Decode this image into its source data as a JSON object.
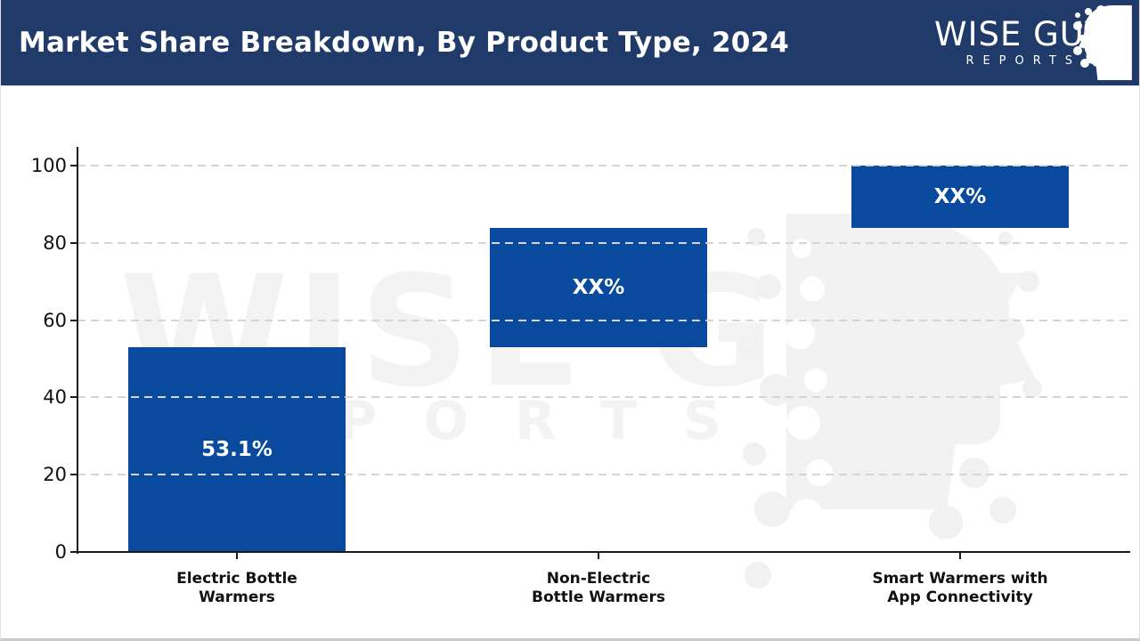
{
  "header": {
    "title": "Market Share Breakdown, By Product Type, 2024",
    "logo": {
      "name": "WISE GUY",
      "subtitle": "REPORTS"
    }
  },
  "watermark": {
    "line1": "WISE GUY",
    "line2": "REPORTS"
  },
  "chart_data": {
    "type": "bar",
    "variant": "waterfall",
    "title": "Market Share Breakdown, By Product Type, 2024",
    "categories": [
      "Electric Bottle Warmers",
      "Non-Electric Bottle Warmers",
      "Smart Warmers with App Connectivity"
    ],
    "tick_labels": [
      "Electric Bottle\nWarmers",
      "Non-Electric\nBottle Warmers",
      "Smart Warmers with\nApp Connectivity"
    ],
    "segments": [
      {
        "category": "Electric Bottle Warmers",
        "start": 0,
        "end": 53.1,
        "label": "53.1%"
      },
      {
        "category": "Non-Electric Bottle Warmers",
        "start": 53.1,
        "end": 83.9,
        "label": "XX%"
      },
      {
        "category": "Smart Warmers with App Connectivity",
        "start": 83.9,
        "end": 100,
        "label": "XX%"
      }
    ],
    "xlabel": "",
    "ylabel": "",
    "ylim": [
      0,
      100
    ],
    "yticks": [
      0,
      20,
      40,
      60,
      80,
      100
    ],
    "grid": "horizontal-dashed",
    "legend": "none",
    "bar_color": "#0a4a9e",
    "bar_label_color": "#ffffff"
  },
  "colors": {
    "header_bg": "#203a69",
    "bar": "#0a4a9e",
    "axis": "#1a1a1a",
    "grid": "#d5d5d5",
    "watermark": "#f3f3f3",
    "page_bg": "#ffffff"
  }
}
